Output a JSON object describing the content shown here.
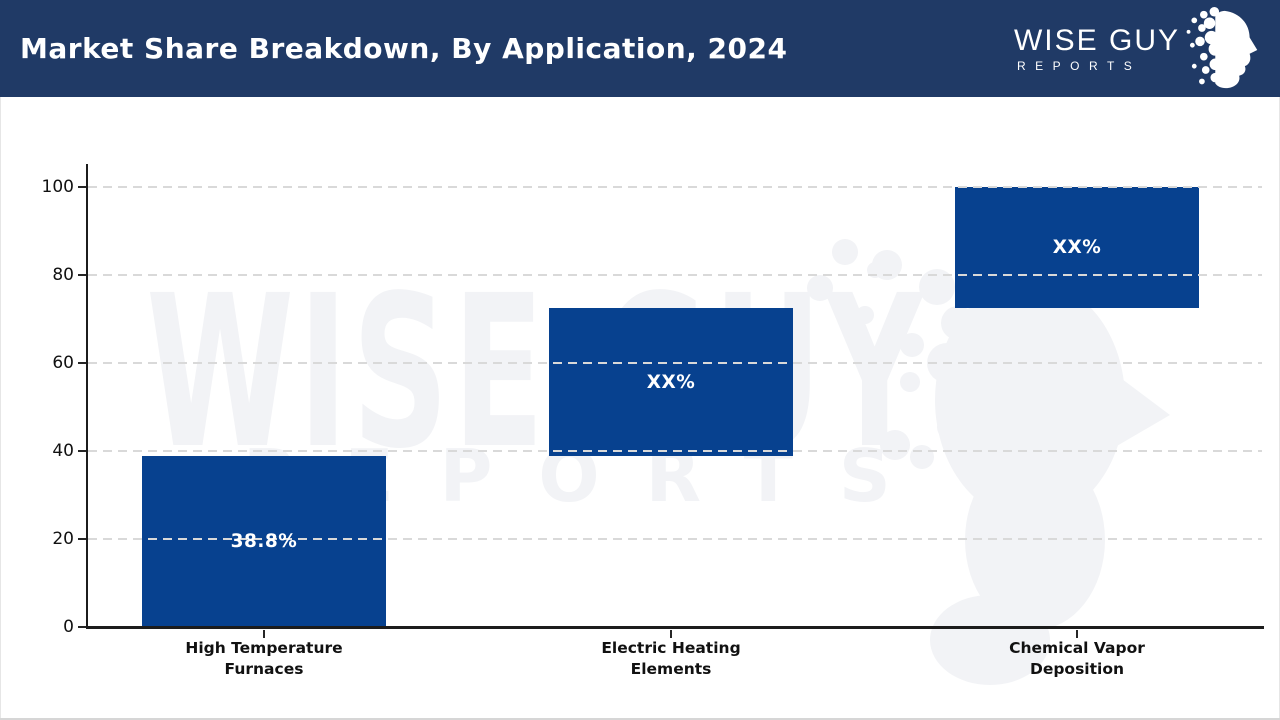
{
  "header": {
    "title": "Market Share Breakdown, By Application, 2024",
    "logo": {
      "primary": "WISE GUY",
      "secondary": "REPORTS"
    }
  },
  "watermark": {
    "primary": "WISE GUY",
    "secondary": "REPORTS"
  },
  "chart_data": {
    "type": "bar",
    "variant": "floating-segment-waterfall",
    "title": "Market Share Breakdown, By Application, 2024",
    "categories": [
      "High Temperature Furnaces",
      "Electric Heating Elements",
      "Chemical Vapor Deposition"
    ],
    "categories_lines": [
      [
        "High Temperature",
        "Furnaces"
      ],
      [
        "Electric Heating",
        "Elements"
      ],
      [
        "Chemical Vapor",
        "Deposition"
      ]
    ],
    "bars": [
      {
        "label": "38.8%",
        "start": 0,
        "end": 38.8,
        "value": 38.8
      },
      {
        "label": "XX%",
        "start": 38.8,
        "end": 72.4,
        "value": 33.6
      },
      {
        "label": "XX%",
        "start": 72.4,
        "end": 100,
        "value": 27.6
      }
    ],
    "yticks": [
      0,
      20,
      40,
      60,
      80,
      100
    ],
    "ylim": [
      0,
      100
    ],
    "xlabel": "",
    "ylabel": "",
    "legend": null,
    "grid": "dashed horizontal, drawn above bars",
    "colors": {
      "bar": "#07418f",
      "grid": "#d9d9d9",
      "axis": "#1c1c1c",
      "bar_label": "#ffffff",
      "header_bg": "#203a66",
      "watermark": "#f2f3f6",
      "background": "#ffffff"
    }
  }
}
